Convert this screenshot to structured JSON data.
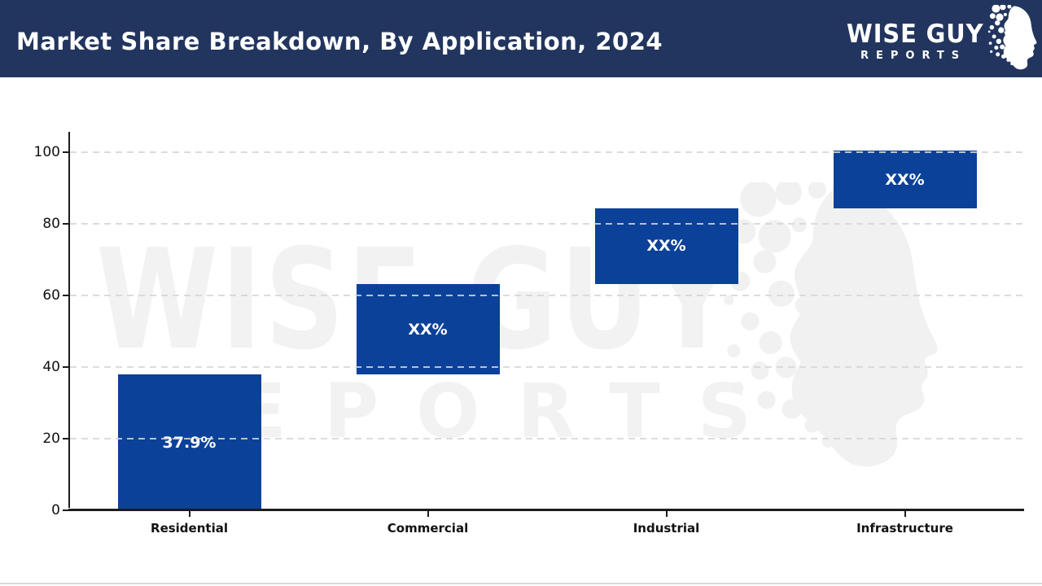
{
  "header": {
    "title": "Market Share Breakdown, By Application, 2024",
    "logo": {
      "wordmark": "WISE GUY",
      "subtext": "REPORTS"
    }
  },
  "watermark": {
    "wordmark": "WISE GUY",
    "subtext": "REPORTS"
  },
  "colors": {
    "header_bg": "#22355e",
    "bar": "#0b4199",
    "bar_label": "#ffffff",
    "gridline": "#d6d6d6",
    "axis": "#1c1c1c",
    "watermark": "#f2f2f2"
  },
  "chart_data": {
    "type": "bar",
    "variant": "floating-waterfall",
    "title": "Market Share Breakdown, By Application, 2024",
    "categories": [
      "Residential",
      "Commercial",
      "Industrial",
      "Infrastructure"
    ],
    "segments": [
      {
        "category": "Residential",
        "start": 0,
        "end": 37.9,
        "label": "37.9%"
      },
      {
        "category": "Commercial",
        "start": 37.9,
        "end": 63.2,
        "label": "XX%"
      },
      {
        "category": "Industrial",
        "start": 63.2,
        "end": 84.3,
        "label": "XX%"
      },
      {
        "category": "Infrastructure",
        "start": 84.3,
        "end": 100.4,
        "label": "XX%"
      }
    ],
    "xlabel": "",
    "ylabel": "",
    "yticks": [
      0,
      20,
      40,
      60,
      80,
      100
    ],
    "ylim": [
      0,
      105.5
    ],
    "grid": "horizontal-dashed-over-bars",
    "legend": "none",
    "bar_color": "#0b4199",
    "bar_label_color": "#ffffff"
  }
}
